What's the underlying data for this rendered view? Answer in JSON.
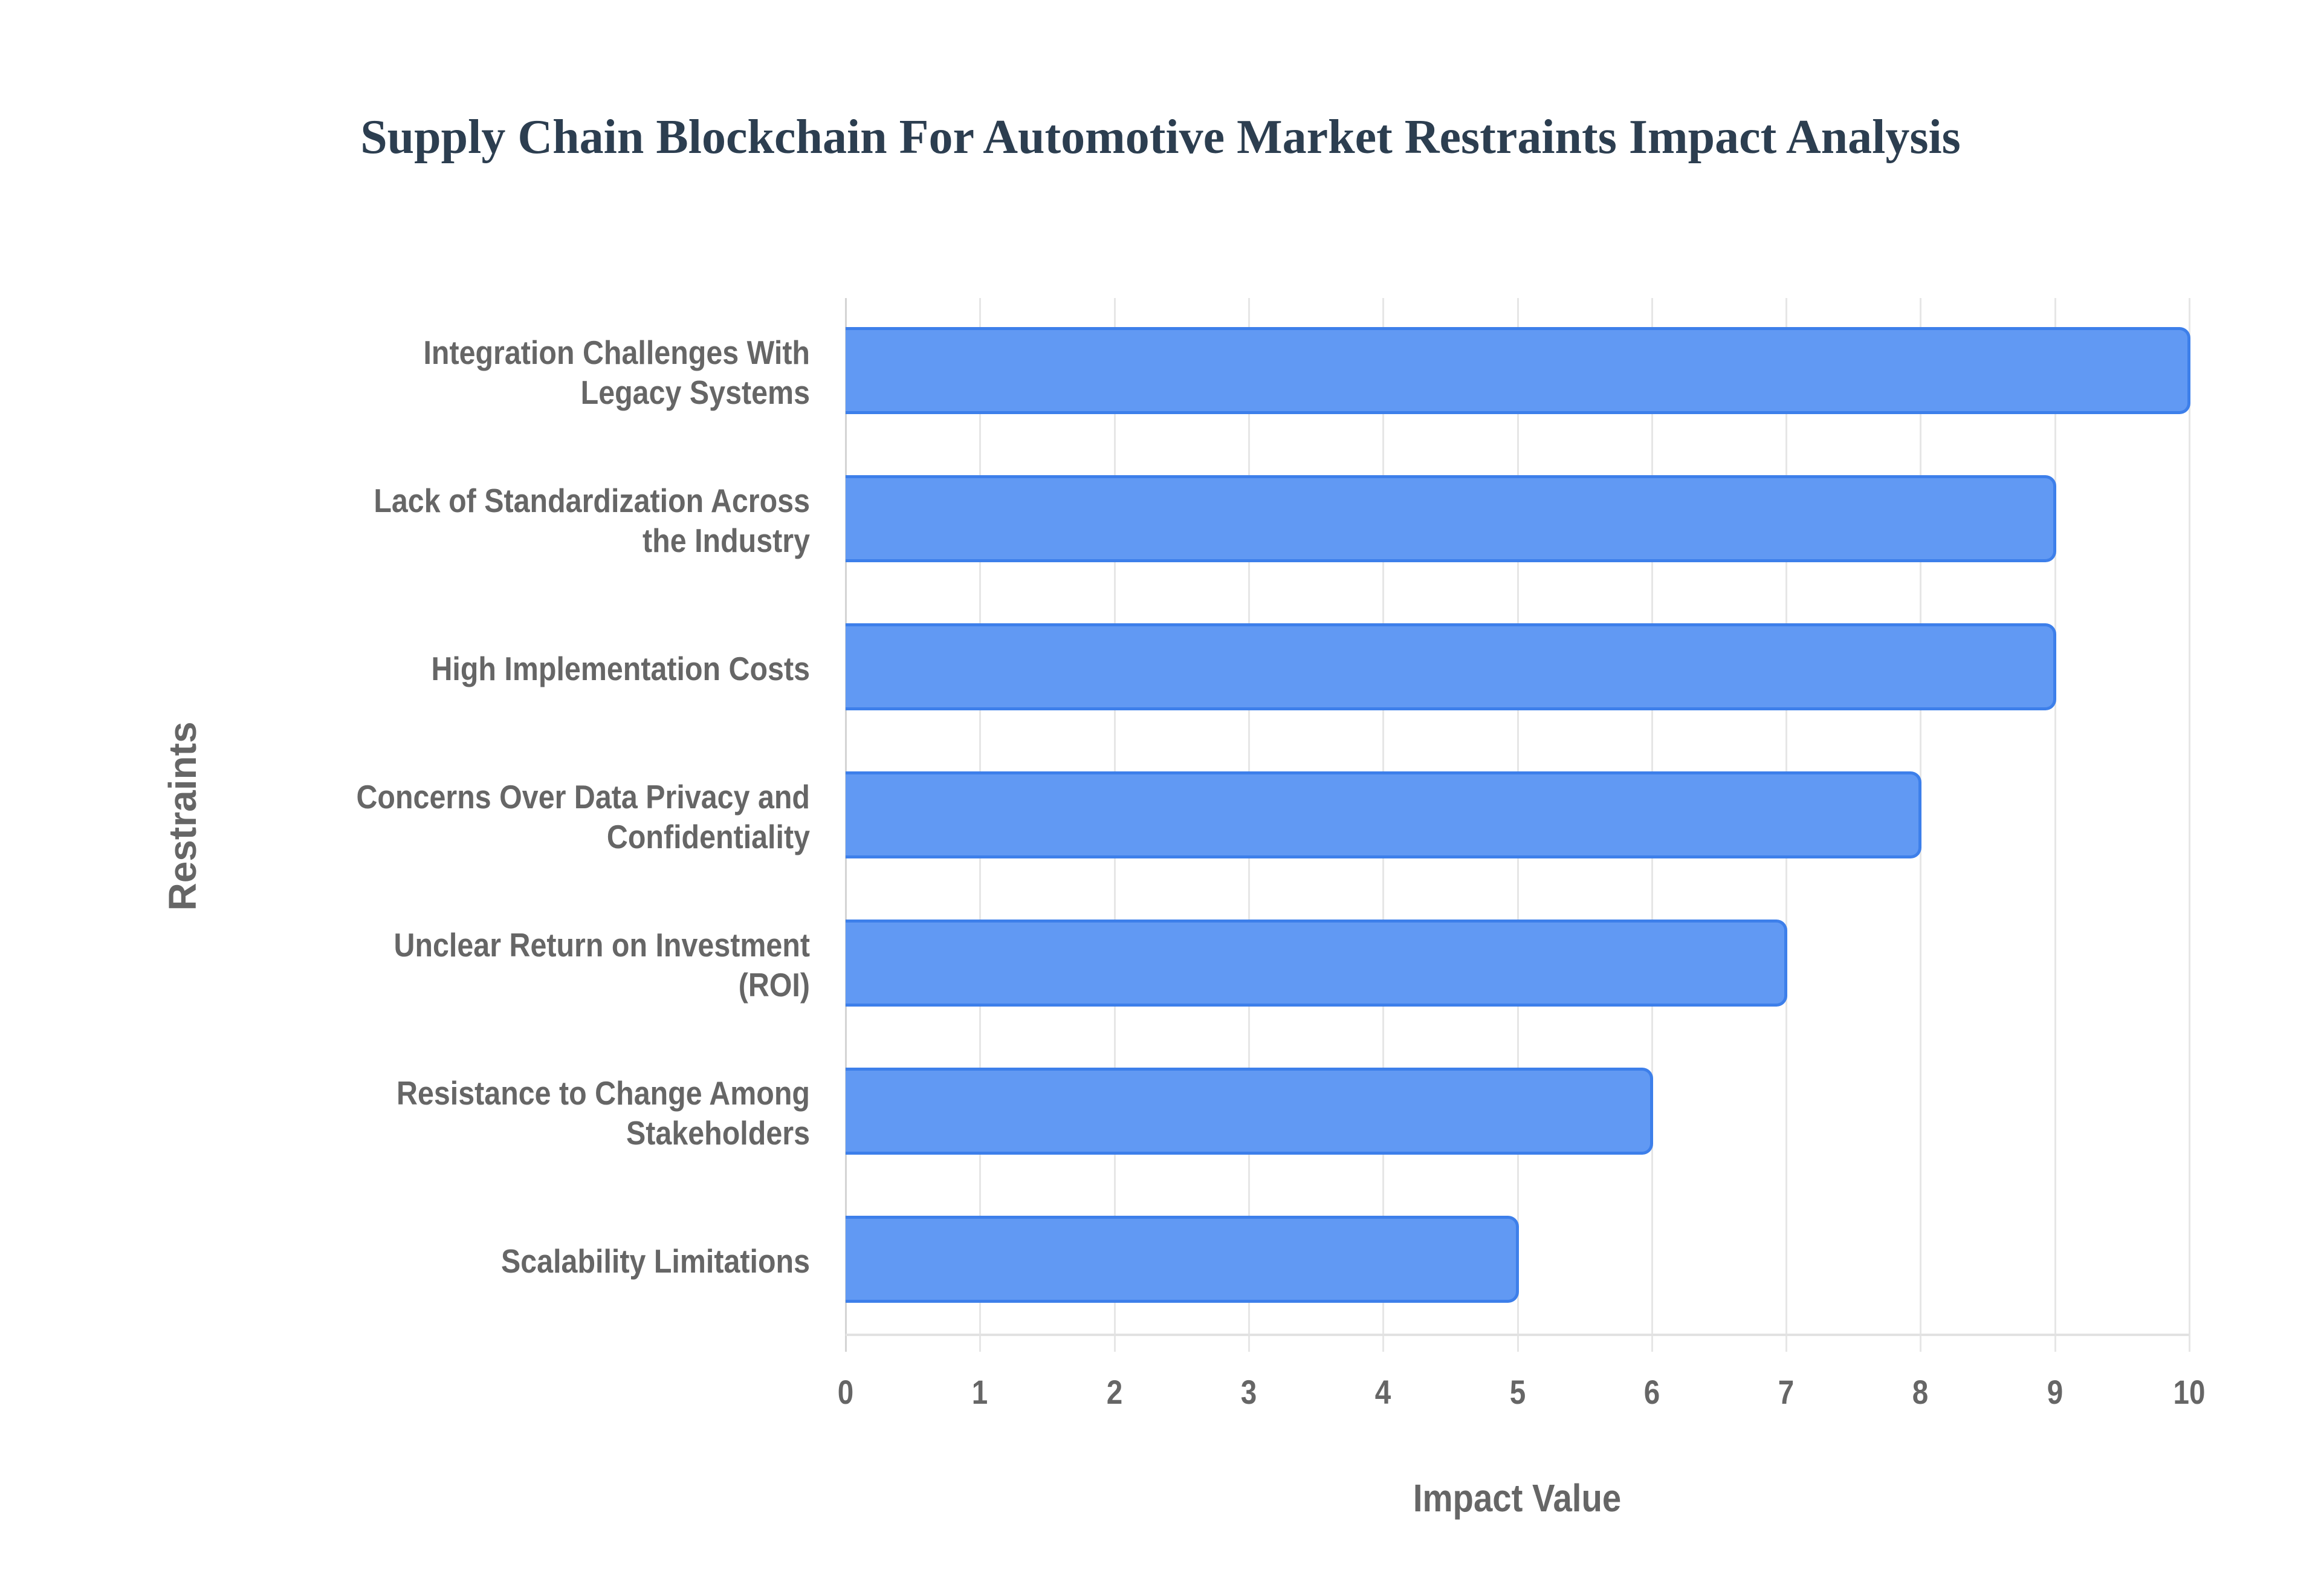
{
  "title": "Supply Chain Blockchain For Automotive Market Restraints Impact Analysis",
  "colors": {
    "bar_fill": "#6199f3",
    "bar_border": "#3d7fea",
    "title": "#2c3e50",
    "axis_text": "#666666",
    "grid": "#e6e6e6"
  },
  "axes": {
    "x_title": "Impact Value",
    "y_title": "Restraints",
    "x_ticks": [
      "0",
      "1",
      "2",
      "3",
      "4",
      "5",
      "6",
      "7",
      "8",
      "9",
      "10"
    ]
  },
  "categories": [
    {
      "line1": "Integration Challenges With",
      "line2": "Legacy Systems",
      "value": 10
    },
    {
      "line1": "Lack of Standardization Across",
      "line2": "the Industry",
      "value": 9
    },
    {
      "line1": "High Implementation Costs",
      "line2": "",
      "value": 9
    },
    {
      "line1": "Concerns Over Data Privacy and",
      "line2": "Confidentiality",
      "value": 8
    },
    {
      "line1": "Unclear Return on Investment",
      "line2": "(ROI)",
      "value": 7
    },
    {
      "line1": "Resistance to Change Among",
      "line2": "Stakeholders",
      "value": 6
    },
    {
      "line1": "Scalability Limitations",
      "line2": "",
      "value": 5
    }
  ],
  "chart_data": {
    "type": "bar",
    "orientation": "horizontal",
    "title": "Supply Chain Blockchain For Automotive Market Restraints Impact Analysis",
    "categories": [
      "Integration Challenges With Legacy Systems",
      "Lack of Standardization Across the Industry",
      "High Implementation Costs",
      "Concerns Over Data Privacy and Confidentiality",
      "Unclear Return on Investment (ROI)",
      "Resistance to Change Among Stakeholders",
      "Scalability Limitations"
    ],
    "values": [
      10,
      9,
      9,
      8,
      7,
      6,
      5
    ],
    "xlabel": "Impact Value",
    "ylabel": "Restraints",
    "xlim": [
      0,
      10
    ],
    "x_ticks": [
      0,
      1,
      2,
      3,
      4,
      5,
      6,
      7,
      8,
      9,
      10
    ],
    "grid": true,
    "legend": null
  }
}
